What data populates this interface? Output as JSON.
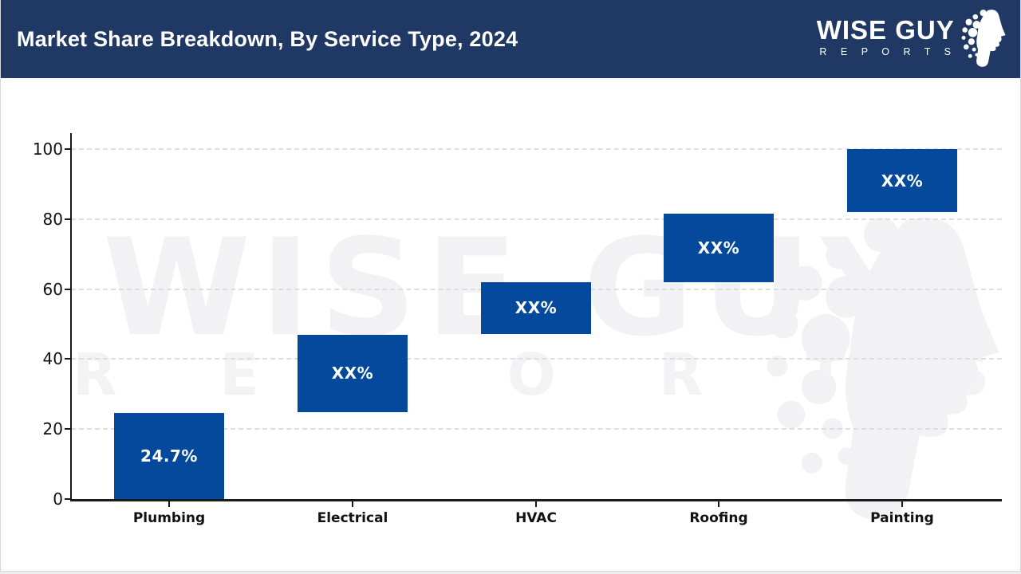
{
  "header": {
    "title": "Market Share Breakdown, By Service Type, 2024",
    "logo": {
      "line1": "WISE GUY",
      "line2": "R E P O R T S"
    }
  },
  "watermark": {
    "line1": "WISE GUY",
    "line2": "R E P O R T S"
  },
  "colors": {
    "header_bg": "#1f3864",
    "bar_blue": "#05499d",
    "bar_label_text": "#ffffff",
    "gridline": "#dedede",
    "axis": "#1a1a1a",
    "watermark": "#f2f2f5"
  },
  "chart_data": {
    "type": "bar",
    "subtype": "waterfall-stacked-segments",
    "title": "Market Share Breakdown, By Service Type, 2024",
    "xlabel": "",
    "ylabel": "",
    "categories": [
      "Plumbing",
      "Electrical",
      "HVAC",
      "Roofing",
      "Painting"
    ],
    "segments": [
      {
        "category": "Plumbing",
        "start": 0,
        "end": 24.7,
        "label": "24.7%"
      },
      {
        "category": "Electrical",
        "start": 24.8,
        "end": 47.0,
        "label": "XX%"
      },
      {
        "category": "HVAC",
        "start": 47.2,
        "end": 62.0,
        "label": "XX%"
      },
      {
        "category": "Roofing",
        "start": 62.0,
        "end": 81.6,
        "label": "XX%"
      },
      {
        "category": "Painting",
        "start": 81.9,
        "end": 100,
        "label": "XX%"
      }
    ],
    "ylim": [
      0,
      100
    ],
    "yticks": [
      0,
      20,
      40,
      60,
      80,
      100
    ],
    "grid": "horizontal-dashed",
    "legend": "none",
    "bar_color": "#05499d"
  }
}
